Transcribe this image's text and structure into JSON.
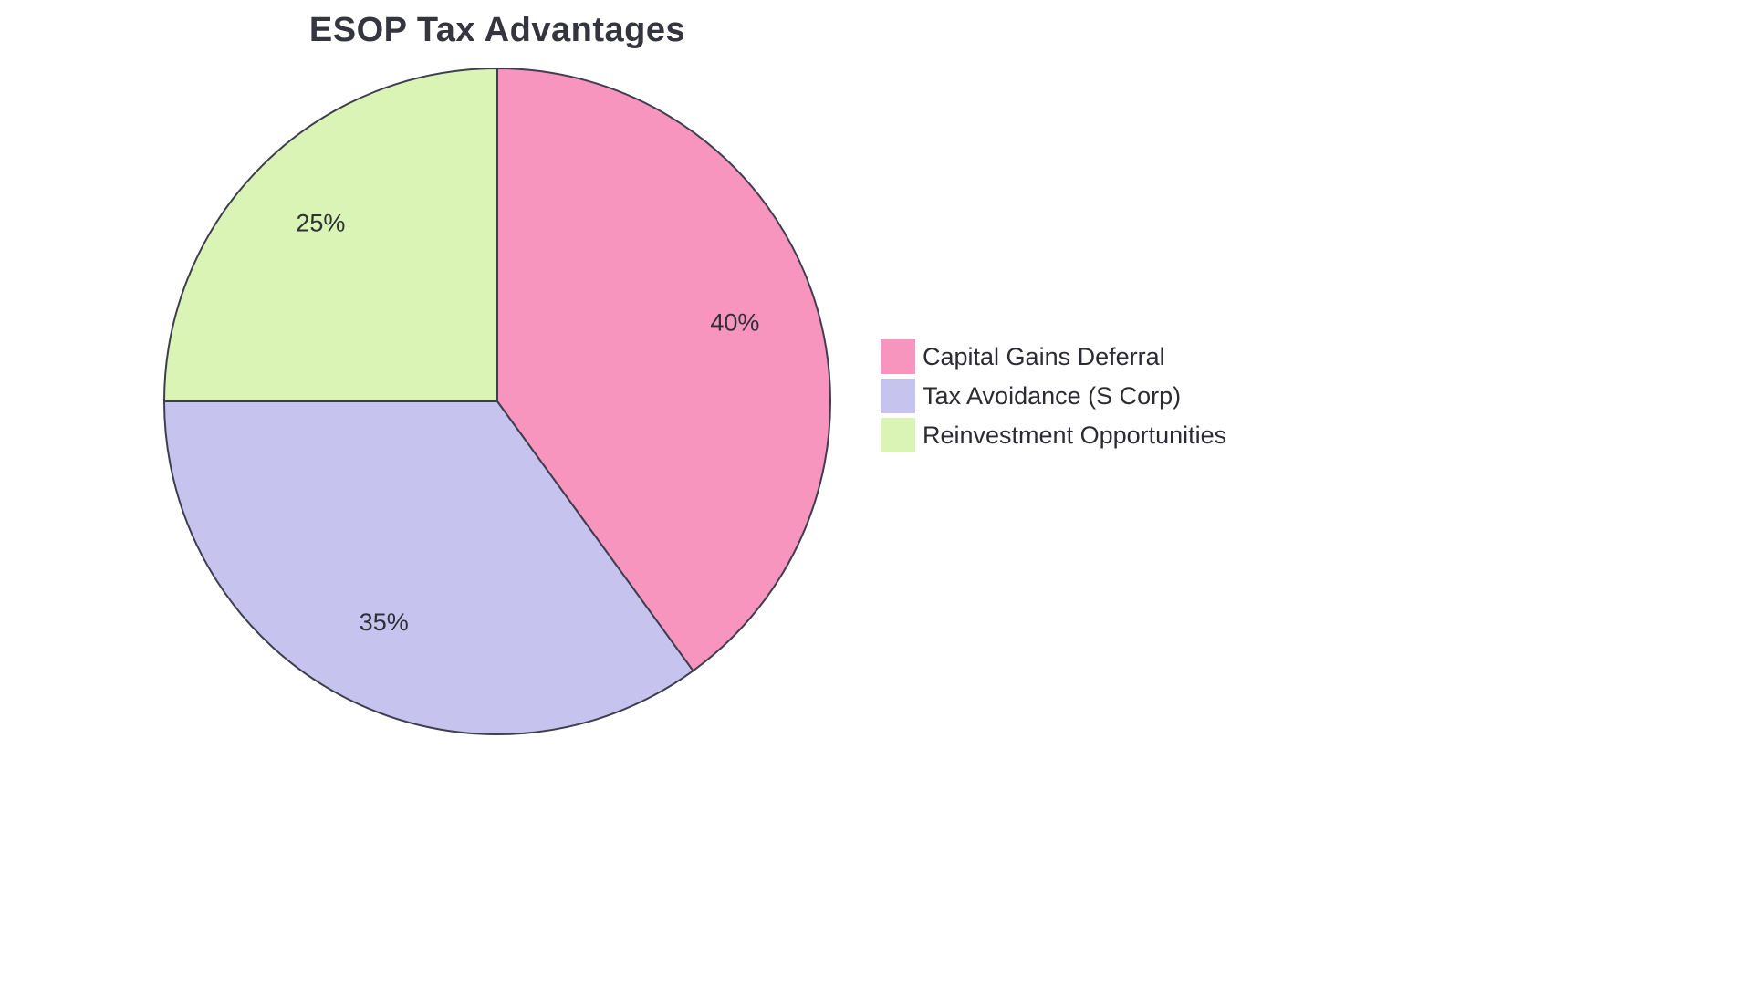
{
  "chart_data": {
    "type": "pie",
    "title": "ESOP Tax Advantages",
    "legend_position": "right",
    "background": "#FFFFFF",
    "stroke_color": "#3E3E50",
    "slices": [
      {
        "label": "Capital Gains Deferral",
        "value": 40,
        "pct_label": "40%",
        "color": "#F795BE"
      },
      {
        "label": "Tax Avoidance (S Corp)",
        "value": 35,
        "pct_label": "35%",
        "color": "#C6C4EF"
      },
      {
        "label": "Reinvestment Opportunities",
        "value": 25,
        "pct_label": "25%",
        "color": "#D9F4B4"
      }
    ]
  }
}
